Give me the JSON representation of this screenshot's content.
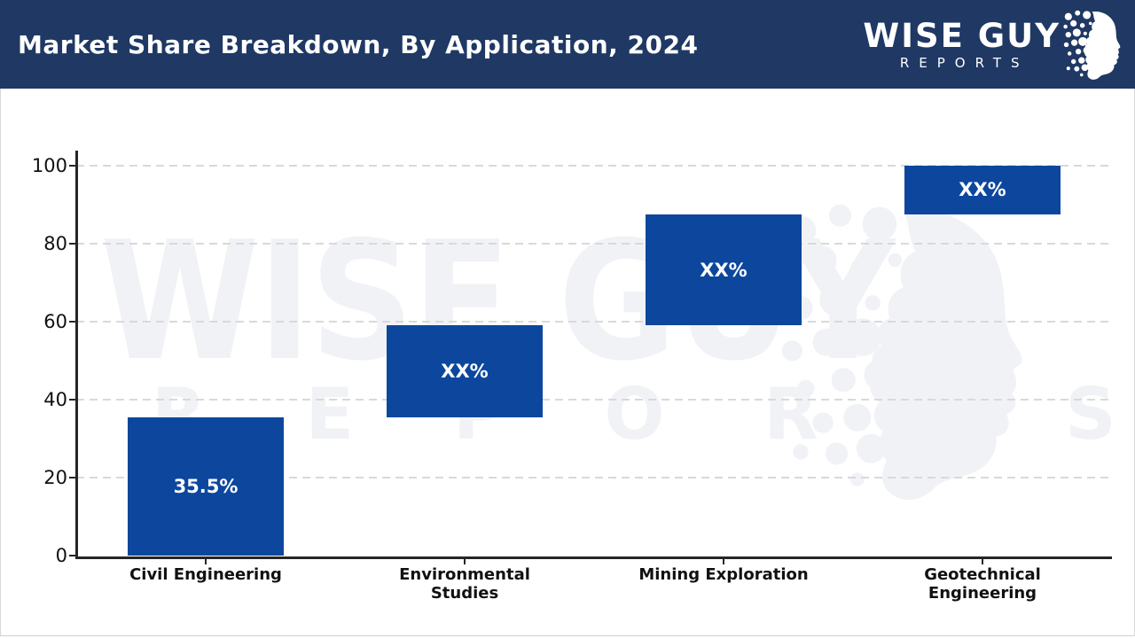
{
  "header": {
    "title": "Market Share Breakdown, By Application, 2024",
    "logo": {
      "line1": "WISE GUY",
      "line2": "REPORTS"
    }
  },
  "watermark": {
    "line1": "WISE GUY",
    "line2": "R E P O R T S"
  },
  "colors": {
    "header_bg": "#1f3864",
    "bar": "#0c479d",
    "grid": "#d9d9d9",
    "axis": "#262626",
    "tick_text": "#111111",
    "bar_label_text": "#ffffff",
    "watermark": "#f1f2f6"
  },
  "chart_data": {
    "type": "bar",
    "subtype": "waterfall-floating-bars",
    "title": "Market Share Breakdown, By Application, 2024",
    "categories": [
      "Civil Engineering",
      "Environmental\nStudies",
      "Mining Exploration",
      "Geotechnical\nEngineering"
    ],
    "segments": [
      {
        "category": "Civil Engineering",
        "start": 0,
        "end": 35.5,
        "label": "35.5%"
      },
      {
        "category": "Environmental Studies",
        "start": 35.5,
        "end": 59,
        "label": "XX%"
      },
      {
        "category": "Mining Exploration",
        "start": 59,
        "end": 87.3,
        "label": "XX%"
      },
      {
        "category": "Geotechnical Engineering",
        "start": 87.3,
        "end": 100,
        "label": "XX%"
      }
    ],
    "xlabel": "",
    "ylabel": "",
    "ylim": [
      0,
      100
    ],
    "yticks": [
      0,
      20,
      40,
      60,
      80,
      100
    ],
    "grid": "horizontal dashed",
    "legend": "none"
  }
}
